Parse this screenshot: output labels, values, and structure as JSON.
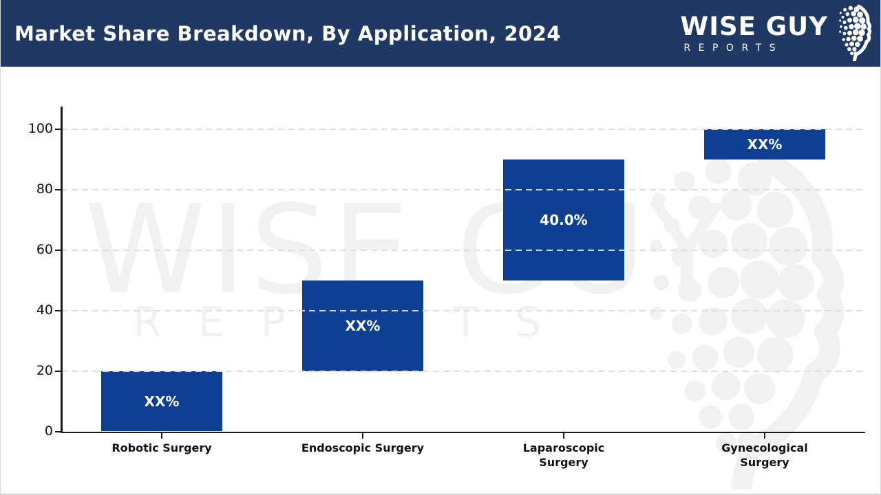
{
  "header": {
    "title": "Market Share Breakdown, By Application, 2024",
    "bg_color": "#1f3864",
    "logo": {
      "line1": "WISE GUY",
      "line2": "REPORTS"
    }
  },
  "watermark": {
    "line1": "WISE GUY",
    "line2": "REPORTS",
    "color": "#f1f1f1"
  },
  "chart_data": {
    "type": "bar",
    "variant": "floating-waterfall",
    "title": "Market Share Breakdown, By Application, 2024",
    "categories": [
      "Robotic Surgery",
      "Endoscopic Surgery",
      "Laparoscopic Surgery",
      "Gynecological Surgery"
    ],
    "category_lines": [
      [
        "Robotic Surgery"
      ],
      [
        "Endoscopic Surgery"
      ],
      [
        "Laparoscopic",
        "Surgery"
      ],
      [
        "Gynecological",
        "Surgery"
      ]
    ],
    "bars": [
      {
        "category": "Robotic Surgery",
        "from": 0,
        "to": 20,
        "label": "XX%"
      },
      {
        "category": "Endoscopic Surgery",
        "from": 20,
        "to": 50,
        "label": "XX%"
      },
      {
        "category": "Laparoscopic Surgery",
        "from": 50,
        "to": 90,
        "label": "40.0%"
      },
      {
        "category": "Gynecological Surgery",
        "from": 90,
        "to": 100,
        "label": "XX%"
      }
    ],
    "ylim": [
      0,
      100
    ],
    "yticks": [
      0,
      20,
      40,
      60,
      80,
      100
    ],
    "grid": "dashed-horizontal",
    "legend": false,
    "bar_color": "#0d3f92",
    "bar_label_color": "#ffffff",
    "xlabel": "",
    "ylabel": ""
  }
}
